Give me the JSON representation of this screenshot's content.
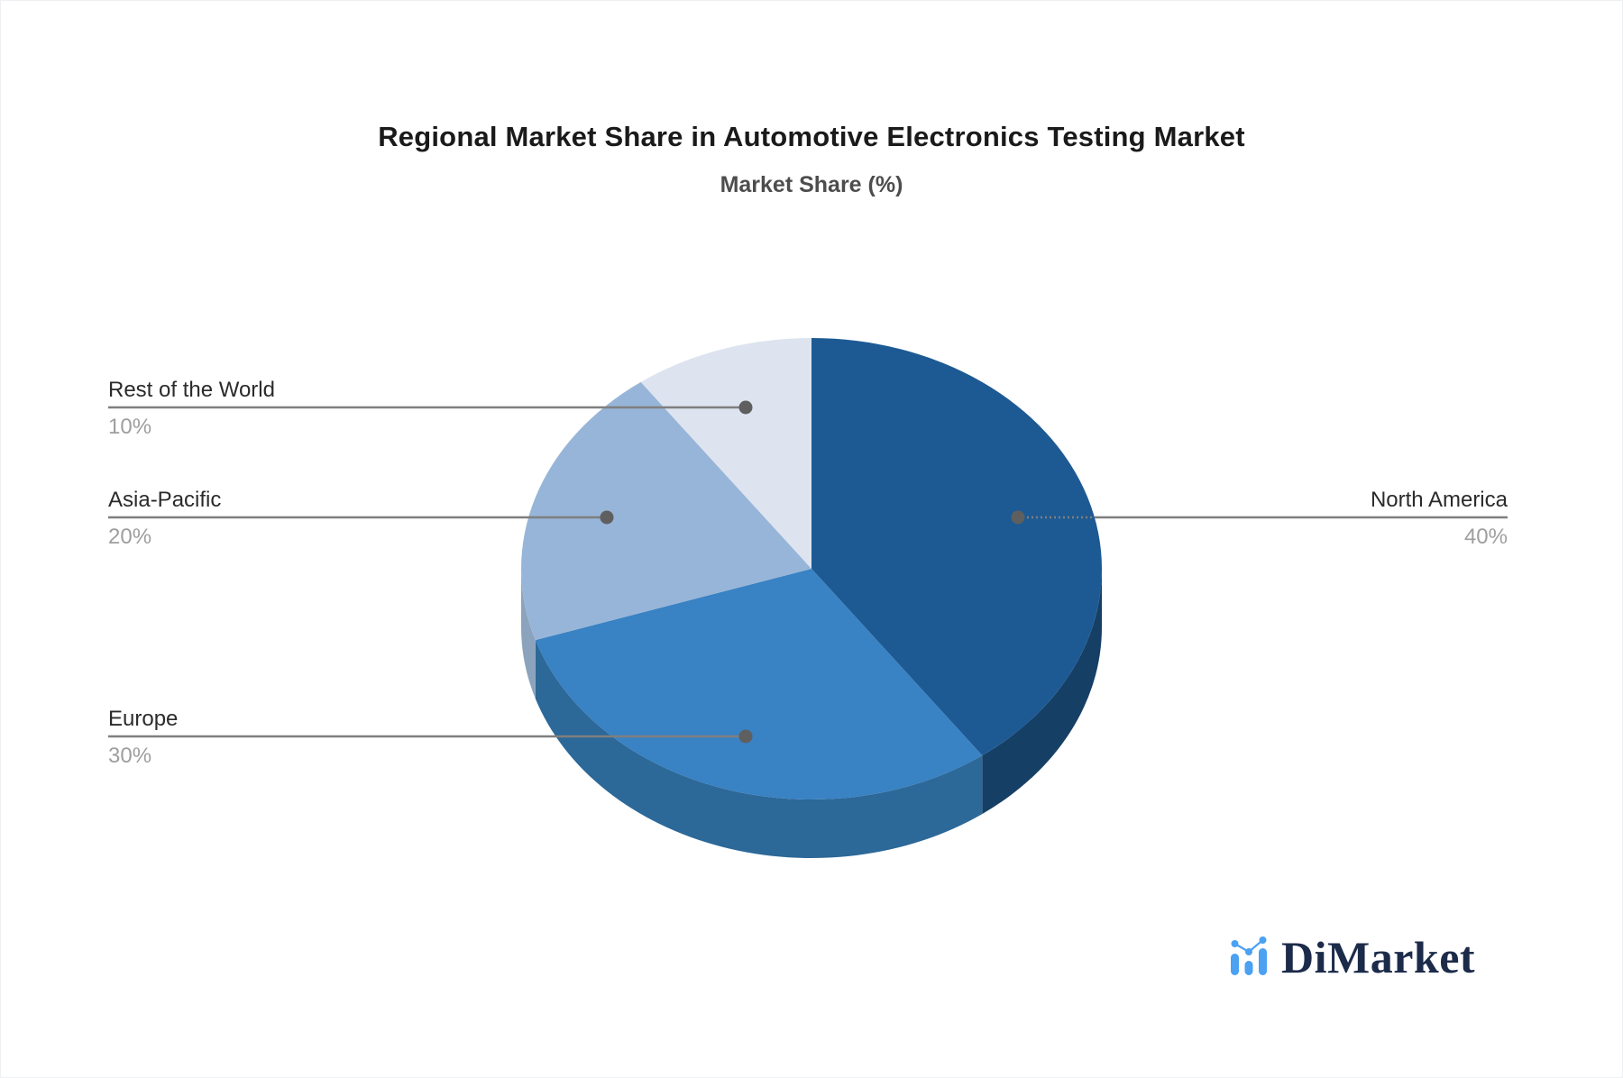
{
  "chart_data": {
    "type": "pie",
    "style": "3d",
    "title": "Regional Market Share in Automotive Electronics Testing Market",
    "subtitle": "Market Share (%)",
    "unit": "%",
    "direction": "clockwise",
    "start_angle_deg": 0,
    "legend_position": "none",
    "labels_layout": "callout-lines",
    "categories": [
      "North America",
      "Europe",
      "Asia-Pacific",
      "Rest of the World"
    ],
    "values": [
      40,
      30,
      20,
      10
    ],
    "slices": [
      {
        "label": "North America",
        "value": 40,
        "pct_label": "40%",
        "color": "#1d5a94",
        "side_color": "#163f66"
      },
      {
        "label": "Europe",
        "value": 30,
        "pct_label": "30%",
        "color": "#3982c3",
        "side_color": "#2c6898"
      },
      {
        "label": "Asia-Pacific",
        "value": 20,
        "pct_label": "20%",
        "color": "#97b5d8",
        "side_color": "#8ba3bc"
      },
      {
        "label": "Rest of the World",
        "value": 10,
        "pct_label": "10%",
        "color": "#dde4ef",
        "side_color": "#c5cedc"
      }
    ]
  },
  "callout": {
    "line_color": "#7f7f7f",
    "dot_color": "#5f5f5f",
    "label_color": "#2b2b2b",
    "pct_color": "#9e9e9e"
  },
  "logo": {
    "text": "DiMarket",
    "icon": "bar-chart-with-trend-dots-icon",
    "icon_color": "#4ba1f2",
    "text_color": "#1c2b4a"
  }
}
